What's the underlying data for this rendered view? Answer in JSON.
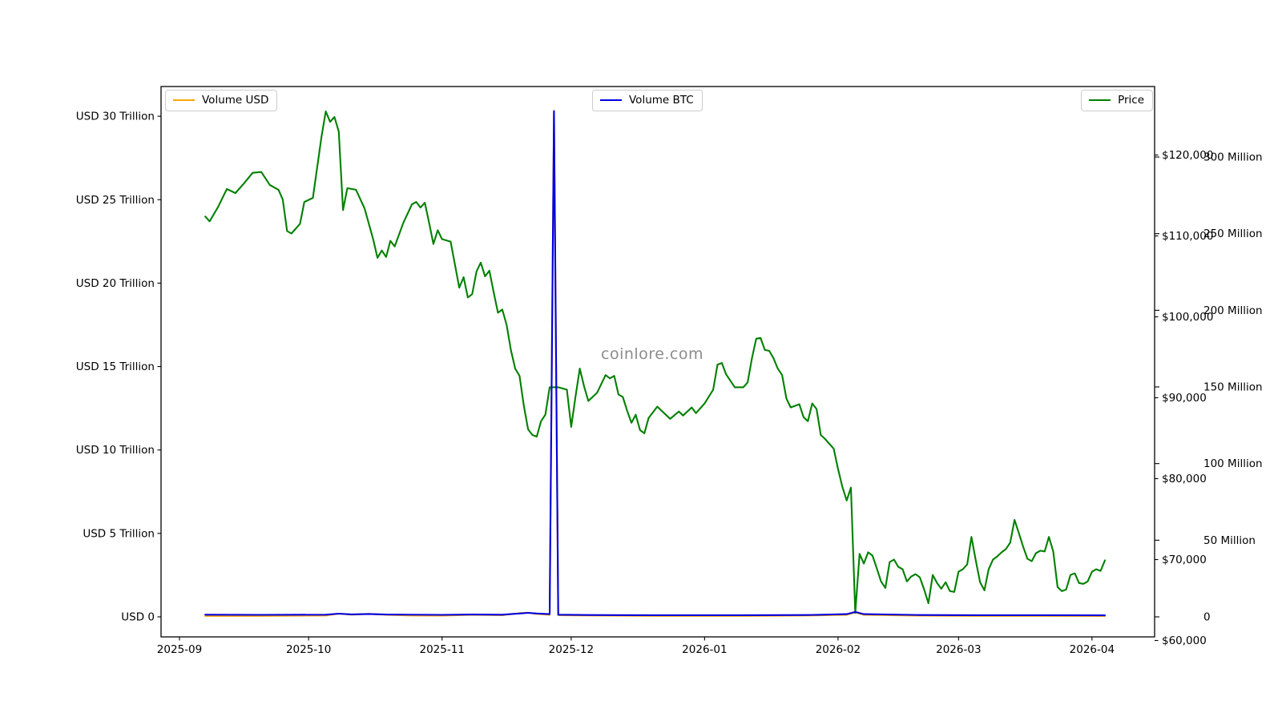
{
  "watermark": "coinlore.com",
  "legend": {
    "volume_usd": "Volume USD",
    "volume_btc": "Volume BTC",
    "price": "Price"
  },
  "colors": {
    "volume_usd": "#ffa500",
    "volume_btc": "#0000e0",
    "price": "#008000",
    "axis": "#000000",
    "watermark": "#8c8c8c",
    "legend_border": "#cccccc"
  },
  "chart_data": {
    "type": "line",
    "title": "",
    "grid": false,
    "legend_position": "three separate boxes along top: Volume USD (left), Volume BTC (center), Price (right)",
    "x_axis": {
      "tick_labels": [
        "2025-09",
        "2025-10",
        "2025-11",
        "2025-12",
        "2026-01",
        "2026-02",
        "2026-03",
        "2026-04"
      ],
      "tick_dates": [
        "2025-09-01",
        "2025-10-01",
        "2025-11-01",
        "2025-12-01",
        "2026-01-01",
        "2026-02-01",
        "2026-03-01",
        "2026-04-01"
      ]
    },
    "y_axis_left": {
      "unit": "USD Trillion",
      "tick_labels": [
        "USD 30 Trillion",
        "USD 25 Trillion",
        "USD 20 Trillion",
        "USD 15 Trillion",
        "USD 10 Trillion",
        "USD 5 Trillion",
        "USD 0"
      ],
      "tick_values_trillions": [
        30,
        25,
        20,
        15,
        10,
        5,
        0
      ],
      "range_trillions": [
        -1.5,
        31.8
      ]
    },
    "y_axis_right_price": {
      "unit": "USD",
      "tick_labels": [
        "$120,000",
        "$110,000",
        "$100,000",
        "$90,000",
        "$80,000",
        "$70,000",
        "$60,000"
      ],
      "tick_values": [
        120000,
        110000,
        100000,
        90000,
        80000,
        70000,
        60000
      ],
      "range_usd": [
        59900,
        128500
      ]
    },
    "y_axis_right_btc": {
      "unit": "Million BTC",
      "tick_labels": [
        "300 Million",
        "250 Million",
        "200 Million",
        "150 Million",
        "100 Million",
        "50 Million",
        "0"
      ],
      "tick_values_millions": [
        300,
        250,
        200,
        150,
        100,
        50,
        0
      ],
      "range_millions": [
        -16.5,
        346
      ]
    },
    "series": [
      {
        "name": "Volume USD",
        "axis": "left",
        "color": "#ffa500",
        "unit": "USD trillions per day",
        "dates": [
          "2025-09-07",
          "2025-09-20",
          "2025-10-05",
          "2025-10-08",
          "2025-10-11",
          "2025-10-15",
          "2025-10-19",
          "2025-10-25",
          "2025-11-01",
          "2025-11-08",
          "2025-11-15",
          "2025-11-19",
          "2025-11-21",
          "2025-11-23",
          "2025-11-26",
          "2025-11-27",
          "2025-11-28",
          "2025-12-05",
          "2025-12-20",
          "2026-01-10",
          "2026-01-25",
          "2026-02-03",
          "2026-02-05",
          "2026-02-07",
          "2026-02-20",
          "2026-03-05",
          "2026-03-20",
          "2026-04-04"
        ],
        "values": [
          0.06,
          0.06,
          0.08,
          0.19,
          0.13,
          0.18,
          0.12,
          0.08,
          0.07,
          0.12,
          0.1,
          0.22,
          0.25,
          0.18,
          0.12,
          30.3,
          0.1,
          0.08,
          0.06,
          0.06,
          0.08,
          0.12,
          0.28,
          0.12,
          0.07,
          0.06,
          0.06,
          0.05
        ]
      },
      {
        "name": "Price",
        "axis": "right_price",
        "color": "#008000",
        "unit": "USD",
        "dates": [
          "2025-09-07",
          "2025-09-08",
          "2025-09-10",
          "2025-09-12",
          "2025-09-14",
          "2025-09-16",
          "2025-09-18",
          "2025-09-20",
          "2025-09-22",
          "2025-09-24",
          "2025-09-25",
          "2025-09-26",
          "2025-09-27",
          "2025-09-29",
          "2025-09-30",
          "2025-10-02",
          "2025-10-04",
          "2025-10-05",
          "2025-10-06",
          "2025-10-07",
          "2025-10-08",
          "2025-10-09",
          "2025-10-10",
          "2025-10-12",
          "2025-10-14",
          "2025-10-16",
          "2025-10-17",
          "2025-10-18",
          "2025-10-19",
          "2025-10-20",
          "2025-10-21",
          "2025-10-23",
          "2025-10-25",
          "2025-10-26",
          "2025-10-27",
          "2025-10-28",
          "2025-10-29",
          "2025-10-30",
          "2025-10-31",
          "2025-11-01",
          "2025-11-03",
          "2025-11-05",
          "2025-11-06",
          "2025-11-07",
          "2025-11-08",
          "2025-11-09",
          "2025-11-10",
          "2025-11-11",
          "2025-11-12",
          "2025-11-13",
          "2025-11-14",
          "2025-11-15",
          "2025-11-16",
          "2025-11-17",
          "2025-11-18",
          "2025-11-19",
          "2025-11-20",
          "2025-11-21",
          "2025-11-22",
          "2025-11-23",
          "2025-11-24",
          "2025-11-25",
          "2025-11-26",
          "2025-11-28",
          "2025-11-30",
          "2025-12-01",
          "2025-12-02",
          "2025-12-03",
          "2025-12-04",
          "2025-12-05",
          "2025-12-07",
          "2025-12-09",
          "2025-12-10",
          "2025-12-11",
          "2025-12-12",
          "2025-12-13",
          "2025-12-14",
          "2025-12-15",
          "2025-12-16",
          "2025-12-17",
          "2025-12-18",
          "2025-12-19",
          "2025-12-21",
          "2025-12-23",
          "2025-12-24",
          "2025-12-26",
          "2025-12-27",
          "2025-12-29",
          "2025-12-30",
          "2026-01-01",
          "2026-01-03",
          "2026-01-04",
          "2026-01-05",
          "2026-01-06",
          "2026-01-08",
          "2026-01-10",
          "2026-01-11",
          "2026-01-12",
          "2026-01-13",
          "2026-01-14",
          "2026-01-15",
          "2026-01-16",
          "2026-01-17",
          "2026-01-18",
          "2026-01-19",
          "2026-01-20",
          "2026-01-21",
          "2026-01-23",
          "2026-01-24",
          "2026-01-25",
          "2026-01-26",
          "2026-01-27",
          "2026-01-28",
          "2026-01-29",
          "2026-01-31",
          "2026-02-01",
          "2026-02-02",
          "2026-02-03",
          "2026-02-04",
          "2026-02-05",
          "2026-02-06",
          "2026-02-07",
          "2026-02-08",
          "2026-02-09",
          "2026-02-10",
          "2026-02-11",
          "2026-02-12",
          "2026-02-13",
          "2026-02-14",
          "2026-02-15",
          "2026-02-16",
          "2026-02-17",
          "2026-02-18",
          "2026-02-19",
          "2026-02-20",
          "2026-02-21",
          "2026-02-22",
          "2026-02-23",
          "2026-02-24",
          "2026-02-25",
          "2026-02-26",
          "2026-02-27",
          "2026-02-28",
          "2026-03-01",
          "2026-03-02",
          "2026-03-03",
          "2026-03-04",
          "2026-03-05",
          "2026-03-06",
          "2026-03-07",
          "2026-03-08",
          "2026-03-09",
          "2026-03-10",
          "2026-03-11",
          "2026-03-12",
          "2026-03-13",
          "2026-03-14",
          "2026-03-15",
          "2026-03-16",
          "2026-03-17",
          "2026-03-18",
          "2026-03-19",
          "2026-03-20",
          "2026-03-21",
          "2026-03-22",
          "2026-03-23",
          "2026-03-24",
          "2026-03-25",
          "2026-03-26",
          "2026-03-27",
          "2026-03-28",
          "2026-03-29",
          "2026-03-30",
          "2026-03-31",
          "2026-04-01",
          "2026-04-02",
          "2026-04-03",
          "2026-04-04"
        ],
        "values": [
          112400,
          111800,
          113600,
          115800,
          115300,
          116500,
          117800,
          117900,
          116300,
          115700,
          114500,
          110600,
          110300,
          111500,
          114200,
          114700,
          122300,
          125400,
          124100,
          124700,
          122900,
          113200,
          115900,
          115700,
          113400,
          109600,
          107300,
          108200,
          107400,
          109400,
          108700,
          111600,
          113900,
          114200,
          113500,
          114100,
          111600,
          109000,
          110700,
          109600,
          109300,
          103600,
          104900,
          102400,
          102800,
          105600,
          106700,
          105000,
          105700,
          103000,
          100500,
          100900,
          99000,
          95900,
          93600,
          92700,
          89000,
          86100,
          85400,
          85200,
          87100,
          87900,
          91300,
          91300,
          91000,
          86400,
          90100,
          93600,
          91400,
          89600,
          90600,
          92800,
          92400,
          92700,
          90400,
          90100,
          88400,
          86900,
          87900,
          86000,
          85600,
          87500,
          88900,
          87900,
          87400,
          88300,
          87800,
          88800,
          88100,
          89300,
          91000,
          94100,
          94300,
          92900,
          91300,
          91300,
          91900,
          94900,
          97300,
          97400,
          95900,
          95800,
          94900,
          93600,
          92800,
          89900,
          88800,
          89200,
          87600,
          87100,
          89300,
          88600,
          85400,
          84900,
          83700,
          81200,
          79000,
          77300,
          78900,
          63400,
          70700,
          69500,
          70900,
          70500,
          68900,
          67300,
          66500,
          69700,
          70000,
          69100,
          68800,
          67300,
          67900,
          68200,
          67800,
          66300,
          64600,
          68100,
          67100,
          66400,
          67200,
          66100,
          66000,
          68500,
          68800,
          69400,
          72800,
          69900,
          67200,
          66200,
          68800,
          70000,
          70400,
          70900,
          71300,
          72100,
          74900,
          73300,
          71600,
          70100,
          69800,
          70800,
          71100,
          71000,
          72800,
          71000,
          66600,
          66100,
          66300,
          68100,
          68300,
          67100,
          67000,
          67300,
          68500,
          68800,
          68600,
          69900
        ]
      },
      {
        "name": "Volume BTC",
        "axis": "right_btc",
        "color": "#0000e0",
        "unit": "million BTC per day",
        "dates": [
          "2025-09-07",
          "2025-09-20",
          "2025-10-05",
          "2025-10-08",
          "2025-10-11",
          "2025-10-15",
          "2025-10-19",
          "2025-11-01",
          "2025-11-08",
          "2025-11-15",
          "2025-11-19",
          "2025-11-21",
          "2025-11-23",
          "2025-11-26",
          "2025-11-27",
          "2025-11-28",
          "2025-12-05",
          "2025-12-20",
          "2026-01-10",
          "2026-01-25",
          "2026-02-03",
          "2026-02-05",
          "2026-02-07",
          "2026-02-20",
          "2026-03-05",
          "2026-03-20",
          "2026-04-04"
        ],
        "values": [
          1.4,
          1.3,
          1.4,
          2.1,
          1.6,
          1.9,
          1.5,
          1.3,
          1.5,
          1.4,
          2.2,
          2.6,
          2.2,
          1.8,
          330,
          1.4,
          1.2,
          1.1,
          1.1,
          1.2,
          1.8,
          3.2,
          1.8,
          1.2,
          1.1,
          1.1,
          1.0
        ]
      }
    ]
  }
}
